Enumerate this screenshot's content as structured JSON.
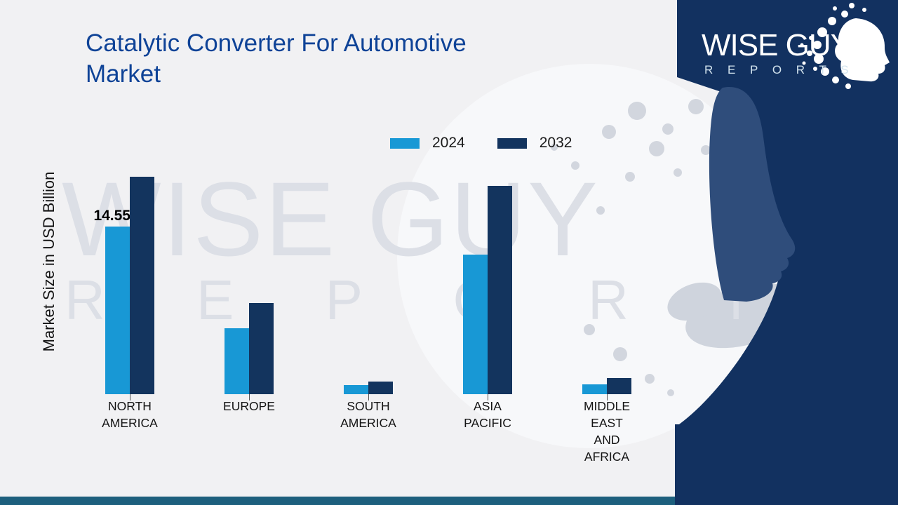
{
  "header": {
    "title": "Catalytic Converter For Automotive Market",
    "title_line1": "Catalytic Converter For Automotive",
    "title_line2": "Market"
  },
  "brand": {
    "logo_line1": "WISE GUY",
    "logo_line2": "R E P O R T S",
    "watermark_line1": "WISE GUY",
    "watermark_line2": "R E P O R T S"
  },
  "chart_data": {
    "type": "bar",
    "title": "Catalytic Converter For Automotive Market",
    "categories": [
      "NORTH AMERICA",
      "EUROPE",
      "SOUTH AMERICA",
      "ASIA PACIFIC",
      "MIDDLE EAST AND AFRICA"
    ],
    "category_lines": [
      [
        "NORTH",
        "AMERICA"
      ],
      [
        "EUROPE"
      ],
      [
        "SOUTH",
        "AMERICA"
      ],
      [
        "ASIA",
        "PACIFIC"
      ],
      [
        "MIDDLE",
        "EAST",
        "AND",
        "AFRICA"
      ]
    ],
    "series": [
      {
        "name": "2024",
        "color": "#1898d5",
        "values": [
          14.55,
          5.7,
          0.8,
          12.1,
          0.85
        ]
      },
      {
        "name": "2032",
        "color": "#13345e",
        "values": [
          18.9,
          7.9,
          1.1,
          18.1,
          1.4
        ]
      }
    ],
    "xlabel": "",
    "ylabel": "Market Size in USD Billion",
    "ylim": [
      0,
      19.5
    ],
    "grid": false,
    "legend_position": "top",
    "annotations": [
      {
        "series": "2024",
        "category": "NORTH AMERICA",
        "text": "14.55"
      }
    ]
  },
  "colors": {
    "accent_blue": "#1898d5",
    "accent_navy": "#13345e",
    "title_blue": "#0f4397",
    "footer_teal": "#1d5f7d",
    "watermark_gray": "#dcdfe6"
  }
}
